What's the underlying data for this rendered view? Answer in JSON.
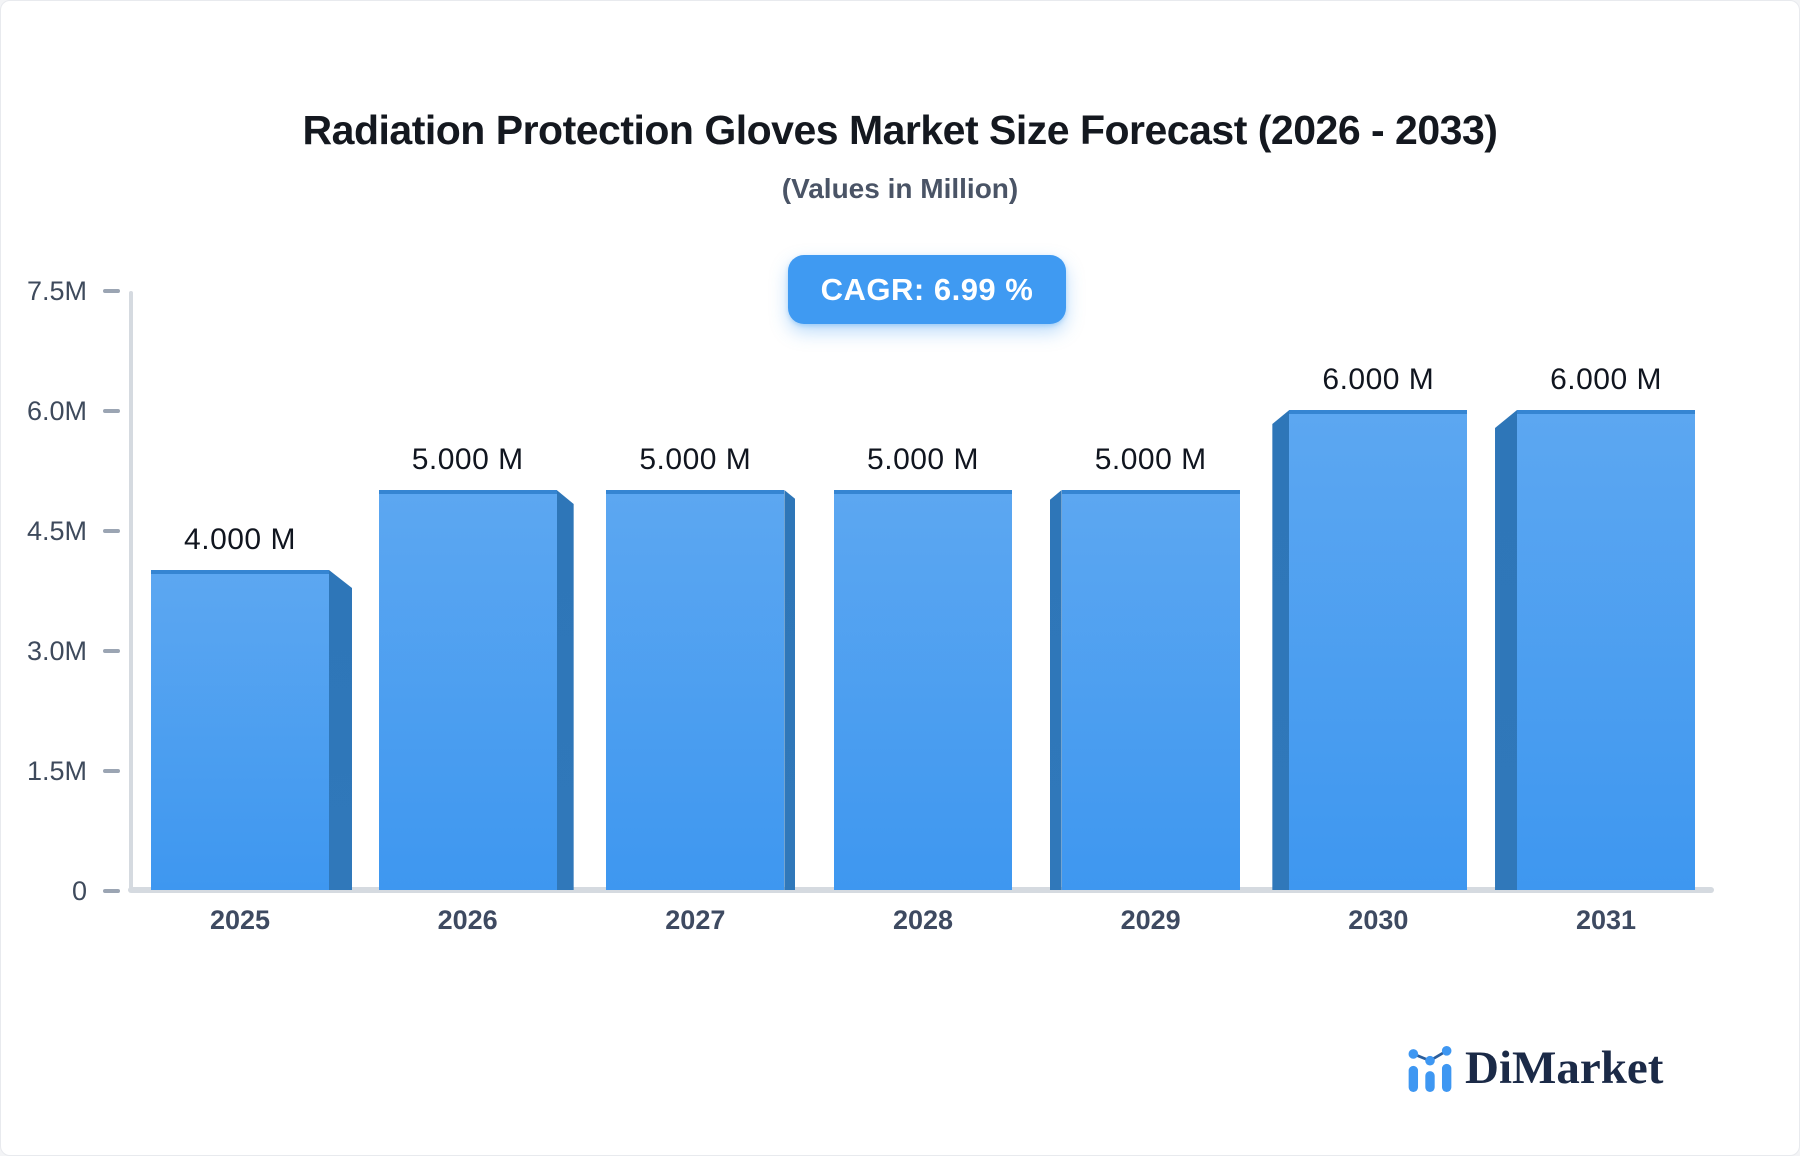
{
  "header": {
    "title": "Radiation Protection Gloves Market Size Forecast (2026 - 2033)",
    "subtitle": "(Values in Million)",
    "cagr_label": "CAGR: 6.99 %"
  },
  "chart_data": {
    "type": "bar",
    "title": "Radiation Protection Gloves Market Size Forecast (2026 - 2033)",
    "subtitle": "(Values in Million)",
    "unit": "Million",
    "categories": [
      "2025",
      "2026",
      "2027",
      "2028",
      "2029",
      "2030",
      "2031"
    ],
    "values": [
      4.0,
      5.0,
      5.0,
      5.0,
      5.0,
      6.0,
      6.0
    ],
    "value_labels": [
      "4.000 M",
      "5.000 M",
      "5.000 M",
      "5.000 M",
      "5.000 M",
      "6.000 M",
      "6.000 M"
    ],
    "cagr_percent": 6.99,
    "ylim": [
      0,
      7.5
    ],
    "ytick_labels": [
      "7.5M",
      "6.0M",
      "4.5M",
      "3.0M",
      "1.5M",
      "0"
    ],
    "ytick_values": [
      7.5,
      6.0,
      4.5,
      3.0,
      1.5,
      0
    ],
    "grid": "off",
    "legend": "none",
    "bar_style": "3d-bevel",
    "colors": {
      "bar_face_top": "#5ca7f1",
      "bar_face_bottom": "#3e97f0",
      "bar_top_edge": "#3585d2",
      "bar_side": "#2e76b8",
      "axis_line": "#d5dae0",
      "badge_bg": "#3f9af2",
      "badge_text": "#ffffff",
      "title_text": "#14181f",
      "label_text": "#10151f"
    }
  },
  "logo": {
    "text": "DiMarket",
    "icon": "bar-line-chart-icon",
    "text_color": "#1b2a47",
    "icon_color": "#3e97f2"
  }
}
